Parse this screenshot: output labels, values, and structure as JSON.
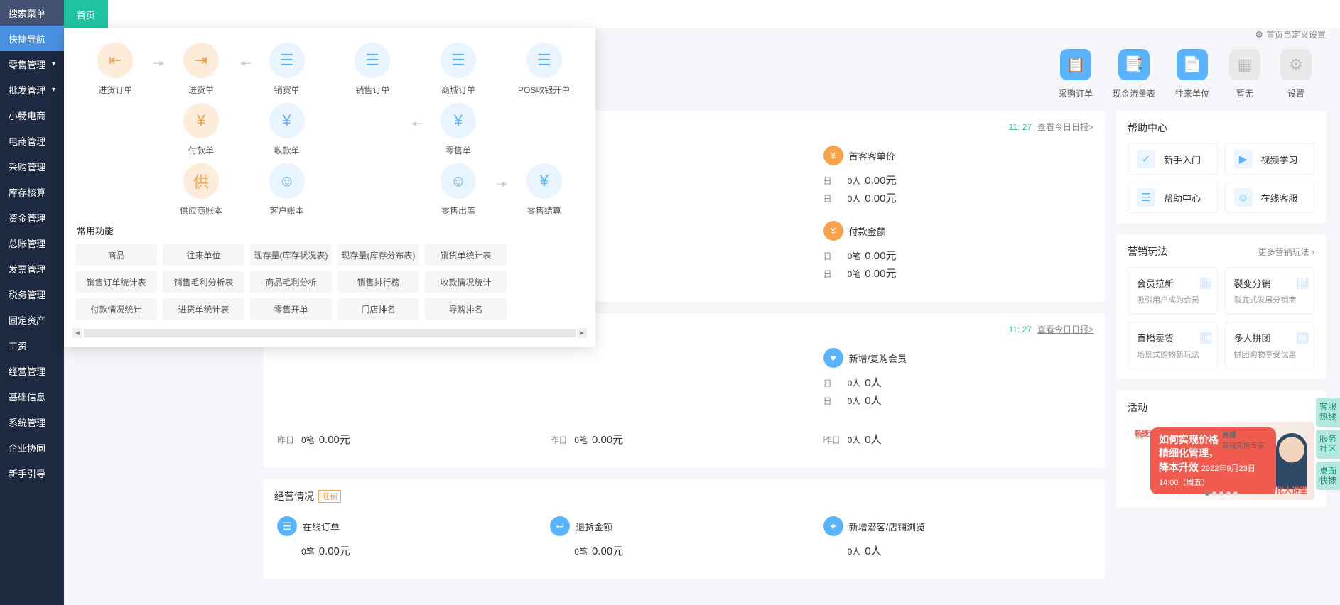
{
  "sidebar": {
    "search": "搜索菜单",
    "items": [
      {
        "label": "快捷导航",
        "active": true
      },
      {
        "label": "零售管理",
        "caret": true
      },
      {
        "label": "批发管理",
        "caret": true
      },
      {
        "label": "小畅电商"
      },
      {
        "label": "电商管理"
      },
      {
        "label": "采购管理"
      },
      {
        "label": "库存核算"
      },
      {
        "label": "资金管理"
      },
      {
        "label": "总账管理"
      },
      {
        "label": "发票管理"
      },
      {
        "label": "税务管理"
      },
      {
        "label": "固定资产"
      },
      {
        "label": "工资"
      },
      {
        "label": "经营管理"
      },
      {
        "label": "基础信息"
      },
      {
        "label": "系统管理"
      },
      {
        "label": "企业协同"
      },
      {
        "label": "新手引导"
      }
    ]
  },
  "tab": {
    "home": "首页"
  },
  "customLink": "首页自定义设置",
  "shortcuts": [
    {
      "label": "采购订单",
      "glyph": "📋",
      "cls": "blue"
    },
    {
      "label": "现金流量表",
      "glyph": "📑",
      "cls": "blue"
    },
    {
      "label": "往来单位",
      "glyph": "📄",
      "cls": "blue"
    },
    {
      "label": "暂无",
      "glyph": "▦",
      "cls": "grey"
    },
    {
      "label": "设置",
      "glyph": "⚙",
      "cls": "grey"
    }
  ],
  "flyout": {
    "rows": [
      [
        {
          "label": "进货订单",
          "cls": "orange",
          "glyph": "⇤",
          "arrowR": true
        },
        {
          "label": "进货单",
          "cls": "orange",
          "glyph": "⇥",
          "arrowD": true
        },
        {
          "label": "销货单",
          "cls": "blue",
          "glyph": "☰",
          "arrowL": true,
          "arrowD": true
        },
        {
          "label": "销售订单",
          "cls": "blue",
          "glyph": "☰"
        },
        {
          "label": "商城订单",
          "cls": "blue",
          "glyph": "☰"
        },
        {
          "label": "POS收银开单",
          "cls": "blue",
          "glyph": "☰"
        }
      ],
      [
        null,
        {
          "label": "付款单",
          "cls": "orange",
          "glyph": "¥",
          "arrowD": true
        },
        {
          "label": "收款单",
          "cls": "blue",
          "glyph": "¥",
          "arrowD": true
        },
        null,
        {
          "label": "零售单",
          "cls": "blue",
          "glyph": "¥",
          "arrowL": true,
          "arrowD": true
        },
        null
      ],
      [
        null,
        {
          "label": "供应商账本",
          "cls": "orange",
          "glyph": "供"
        },
        {
          "label": "客户账本",
          "cls": "blue",
          "glyph": "☺"
        },
        null,
        {
          "label": "零售出库",
          "cls": "blue",
          "glyph": "☺",
          "arrowR": true
        },
        {
          "label": "零售结算",
          "cls": "blue",
          "glyph": "¥"
        }
      ]
    ],
    "commonTitle": "常用功能",
    "common": [
      "商品",
      "往来单位",
      "现存量(库存状况表)",
      "现存量(库存分布表)",
      "销货单统计表",
      "销售订单统计表",
      "销售毛利分析表",
      "商品毛利分析",
      "销售排行榜",
      "收款情况统计",
      "付款情况统计",
      "进货单统计表",
      "零售开单",
      "门店排名",
      "导购排名"
    ]
  },
  "stats1": {
    "time": "11: 27",
    "report": "查看今日日报>",
    "blocks": [
      {
        "icon": "¥",
        "cls": "orange",
        "label": "首客客单价",
        "lines": [
          {
            "pfx": "日",
            "n": "0人",
            "v": "0.00元"
          },
          {
            "pfx": "日",
            "n": "0人",
            "v": "0.00元"
          }
        ]
      },
      {
        "icon": "¥",
        "cls": "orange",
        "label": "付款金额",
        "lines": [
          {
            "pfx": "日",
            "n": "0笔",
            "v": "0.00元"
          },
          {
            "pfx": "日",
            "n": "0笔",
            "v": "0.00元"
          }
        ]
      }
    ]
  },
  "stats2": {
    "time": "11: 27",
    "report": "查看今日日报>",
    "blocks": [
      {
        "icon": "♥",
        "cls": "blue",
        "label": "新增/复购会员",
        "lines": [
          {
            "pfx": "日",
            "n": "0人",
            "v": "0人"
          },
          {
            "pfx": "日",
            "n": "0人",
            "v": "0人"
          }
        ]
      }
    ]
  },
  "stats3": {
    "lines": [
      {
        "pfx": "昨日",
        "n": "0笔",
        "v": "0.00元"
      },
      {
        "pfx": "昨日",
        "n": "0笔",
        "v": "0.00元"
      },
      {
        "pfx": "昨日",
        "n": "0人",
        "v": "0人"
      }
    ]
  },
  "biz": {
    "title": "经营情况",
    "tag": "旺铺",
    "blocks": [
      {
        "icon": "☰",
        "cls": "blue",
        "label": "在线订单",
        "line": {
          "pfx": "",
          "n": "0笔",
          "v": "0.00元"
        }
      },
      {
        "icon": "↩",
        "cls": "blue",
        "label": "退货金额",
        "line": {
          "pfx": "",
          "n": "0笔",
          "v": "0.00元"
        }
      },
      {
        "icon": "✦",
        "cls": "blue",
        "label": "新增潜客/店铺浏览",
        "line": {
          "pfx": "",
          "n": "0人",
          "v": "0人"
        }
      }
    ]
  },
  "help": {
    "title": "帮助中心",
    "items": [
      {
        "glyph": "✓",
        "label": "新手入门"
      },
      {
        "glyph": "▶",
        "label": "视频学习"
      },
      {
        "glyph": "☰",
        "label": "帮助中心"
      },
      {
        "glyph": "☺",
        "label": "在线客服"
      }
    ]
  },
  "marketing": {
    "title": "营销玩法",
    "more": "更多营销玩法",
    "items": [
      {
        "title": "会员拉新",
        "sub": "吸引用户成为会员"
      },
      {
        "title": "裂变分销",
        "sub": "裂变式发展分销商"
      },
      {
        "title": "直播卖货",
        "sub": "场景式购物新玩法"
      },
      {
        "title": "多人拼团",
        "sub": "拼团购物享受优惠"
      }
    ]
  },
  "activity": {
    "title": "活动",
    "l1": "如何实现价格",
    "l2": "精细化管理，",
    "l3": "降本升效",
    "date": "2022年9月23日 14:00（周五）",
    "name": "苏娜",
    "role": "高级实施专家",
    "brand": "畅捷通",
    "foot": "数智化大讲堂"
  },
  "floats": [
    "客服热线",
    "服务社区",
    "桌面快捷"
  ]
}
